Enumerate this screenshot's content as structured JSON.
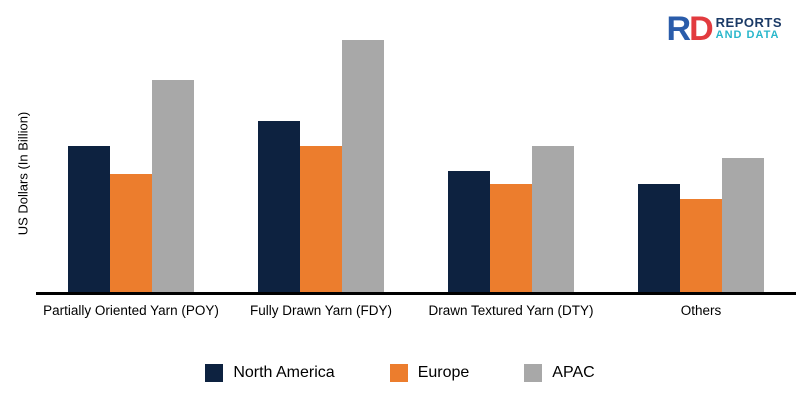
{
  "logo": {
    "mark_r": "R",
    "mark_d": "D",
    "line1": "REPORTS",
    "line2": "AND DATA"
  },
  "chart_data": {
    "type": "bar",
    "title": "",
    "ylabel": "US Dollars (In Billion)",
    "xlabel": "",
    "ylim": [
      0,
      10
    ],
    "grid": false,
    "legend_position": "bottom",
    "categories": [
      "Partially Oriented Yarn (POY)",
      "Fully Drawn Yarn (FDY)",
      "Drawn Textured Yarn (DTY)",
      "Others"
    ],
    "series": [
      {
        "name": "North America",
        "color": "#0d2240",
        "values": [
          5.8,
          6.8,
          4.8,
          4.3
        ]
      },
      {
        "name": "Europe",
        "color": "#ec7d2d",
        "values": [
          4.7,
          5.8,
          4.3,
          3.7
        ]
      },
      {
        "name": "APAC",
        "color": "#a8a8a8",
        "values": [
          8.4,
          10.0,
          5.8,
          5.3
        ]
      }
    ]
  }
}
